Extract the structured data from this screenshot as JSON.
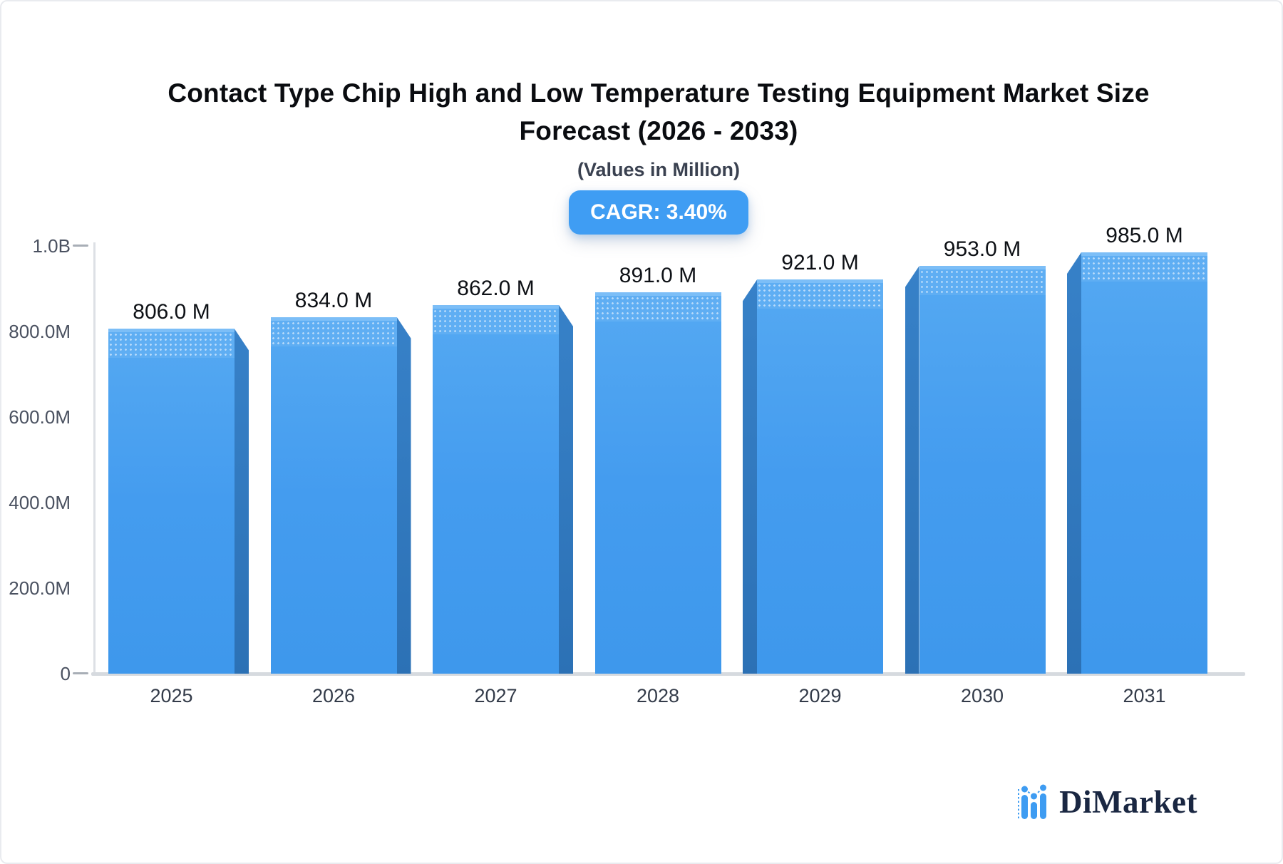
{
  "header": {
    "title_line1": "Contact Type Chip High and Low Temperature Testing Equipment Market Size",
    "title_line2": "Forecast (2026 - 2033)",
    "subtitle": "(Values in Million)",
    "cagr_badge": "CAGR: 3.40%"
  },
  "chart_data": {
    "type": "bar",
    "title": "Contact Type Chip High and Low Temperature Testing Equipment Market Size Forecast (2026 - 2033)",
    "subtitle": "(Values in Million)",
    "cagr_percent": "3.40%",
    "categories": [
      "2025",
      "2026",
      "2027",
      "2028",
      "2029",
      "2030",
      "2031"
    ],
    "values": [
      806,
      834,
      862,
      891,
      921,
      953,
      985
    ],
    "value_labels": [
      "806.0 M",
      "834.0 M",
      "862.0 M",
      "891.0 M",
      "921.0 M",
      "953.0 M",
      "985.0 M"
    ],
    "xlabel": "",
    "ylabel": "",
    "ylim": [
      0,
      1000
    ],
    "y_ticks": [
      {
        "label": "1.0B",
        "value": 1000,
        "dash": true
      },
      {
        "label": "800.0M",
        "value": 800,
        "dash": false
      },
      {
        "label": "600.0M",
        "value": 600,
        "dash": false
      },
      {
        "label": "400.0M",
        "value": 400,
        "dash": false
      },
      {
        "label": "200.0M",
        "value": 200,
        "dash": false
      },
      {
        "label": "0",
        "value": 0,
        "dash": true
      }
    ],
    "grid": false,
    "legend": false,
    "bar_style": "3d-bevel-perspective",
    "colors": {
      "bar_face_top": "#55A9F2",
      "bar_face_bottom": "#3E98EC",
      "bar_bevel": "#2E76BB",
      "bar_top_texture": "#5FAEF3",
      "bar_top_highlight": "#7CBEF7",
      "badge_blue": "#3F9DF3",
      "axis_gray": "#D6DADF"
    }
  },
  "logo": {
    "brand": "DiMarket",
    "icon": "bar-line-chart-icon",
    "text_color": "#1A2742",
    "accent_color": "#3E9CF2"
  }
}
